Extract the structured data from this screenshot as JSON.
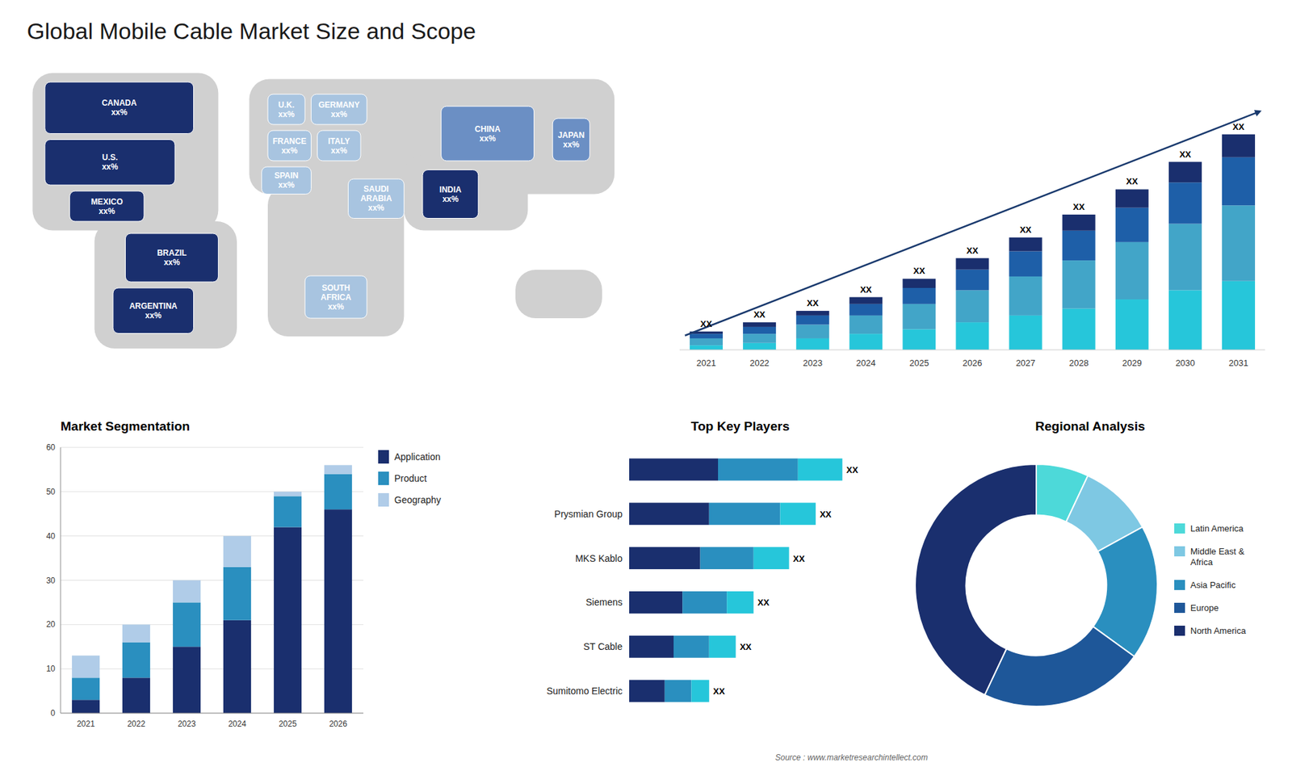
{
  "title": "Global Mobile Cable Market Size and Scope",
  "annotations": [
    "Source : www.marketresearchintellect.com"
  ],
  "chart_data": [
    {
      "type": "map",
      "categories": [
        "CANADA",
        "U.S.",
        "MEXICO",
        "BRAZIL",
        "ARGENTINA",
        "U.K.",
        "FRANCE",
        "SPAIN",
        "GERMANY",
        "ITALY",
        "SAUDI\nARABIA",
        "SOUTH\nAFRICA",
        "CHINA",
        "INDIA",
        "JAPAN"
      ],
      "annotations": [
        "xx%",
        "xx%",
        "xx%",
        "xx%",
        "xx%",
        "xx%",
        "xx%",
        "xx%",
        "xx%",
        "xx%",
        "xx%",
        "xx%",
        "xx%",
        "xx%",
        "xx%"
      ],
      "colors": [
        "#1a2f6e",
        "#1a2f6e",
        "#1a2f6e",
        "#1a2f6e",
        "#1a2f6e",
        "#a8c4e0",
        "#a8c4e0",
        "#a8c4e0",
        "#a8c4e0",
        "#a8c4e0",
        "#a8c4e0",
        "#a8c4e0",
        "#6b8fc4",
        "#1a2f6e",
        "#6b8fc4"
      ],
      "color": "#d0d0d0",
      "tick_labels": false
    },
    {
      "type": "bar",
      "stacked": true,
      "categories": [
        "2021",
        "2022",
        "2023",
        "2024",
        "2025",
        "2026",
        "2027",
        "2028",
        "2029",
        "2030",
        "2031"
      ],
      "series": [
        {
          "color": "#26c6da",
          "values": [
            2,
            3,
            5,
            7,
            9,
            12,
            15,
            18,
            22,
            26,
            30
          ]
        },
        {
          "color": "#42a5c8",
          "values": [
            3,
            4,
            6,
            8,
            11,
            14,
            17,
            21,
            25,
            29,
            33
          ]
        },
        {
          "color": "#1e5fa8",
          "values": [
            2,
            3,
            4,
            5,
            7,
            9,
            11,
            13,
            15,
            18,
            21
          ]
        },
        {
          "color": "#1a2f6e",
          "values": [
            1,
            2,
            2,
            3,
            4,
            5,
            6,
            7,
            8,
            9,
            10
          ]
        }
      ],
      "annotations": [
        "XX",
        "XX",
        "XX",
        "XX",
        "XX",
        "XX",
        "XX",
        "XX",
        "XX",
        "XX",
        "XX"
      ],
      "ylim": [
        0,
        120.32
      ],
      "tick_labels": "x"
    },
    {
      "type": "bar",
      "title": "Market Segmentation",
      "stacked": true,
      "categories": [
        "2021",
        "2022",
        "2023",
        "2024",
        "2025",
        "2026"
      ],
      "series": [
        {
          "name": "Application",
          "color": "#1a2f6e",
          "values": [
            3,
            8,
            15,
            21,
            42,
            46
          ]
        },
        {
          "name": "Product",
          "color": "#2a8fbf",
          "values": [
            5,
            8,
            10,
            12,
            7,
            8
          ]
        },
        {
          "name": "Geography",
          "color": "#b0cce8",
          "values": [
            5,
            4,
            5,
            7,
            1,
            2
          ]
        }
      ],
      "ylim": [
        0,
        60
      ],
      "yticks": [
        0,
        10,
        20,
        30,
        40,
        50,
        60
      ],
      "grid": true,
      "legend": "right"
    },
    {
      "type": "bar",
      "title": "Top Key Players",
      "orientation": "horizontal",
      "stacked": true,
      "categories": [
        null,
        "Prysmian Group",
        "MKS Kablo",
        "Siemens",
        "ST Cable",
        "Sumitomo Electric"
      ],
      "series": [
        {
          "color": "#1a2f6e",
          "values": [
            10,
            9,
            8,
            6,
            5,
            4
          ]
        },
        {
          "color": "#2a8fbf",
          "values": [
            9,
            8,
            6,
            5,
            4,
            3
          ]
        },
        {
          "color": "#26c6da",
          "values": [
            5,
            4,
            4,
            3,
            3,
            2
          ]
        }
      ],
      "annotations": [
        "XX",
        "XX",
        "XX",
        "XX",
        "XX",
        "XX"
      ],
      "xlim": [
        0,
        25
      ],
      "tick_labels": "y"
    },
    {
      "type": "donut",
      "title": "Regional Analysis",
      "categories": [
        "Latin America",
        "Middle East &\nAfrica",
        "Asia Pacific",
        "Europe",
        "North America"
      ],
      "values": [
        7,
        10,
        18,
        22,
        43
      ],
      "colors": [
        "#4dd9d9",
        "#7ec8e3",
        "#2a8fbf",
        "#1e5799",
        "#1a2f6e"
      ],
      "legend": "right"
    }
  ]
}
